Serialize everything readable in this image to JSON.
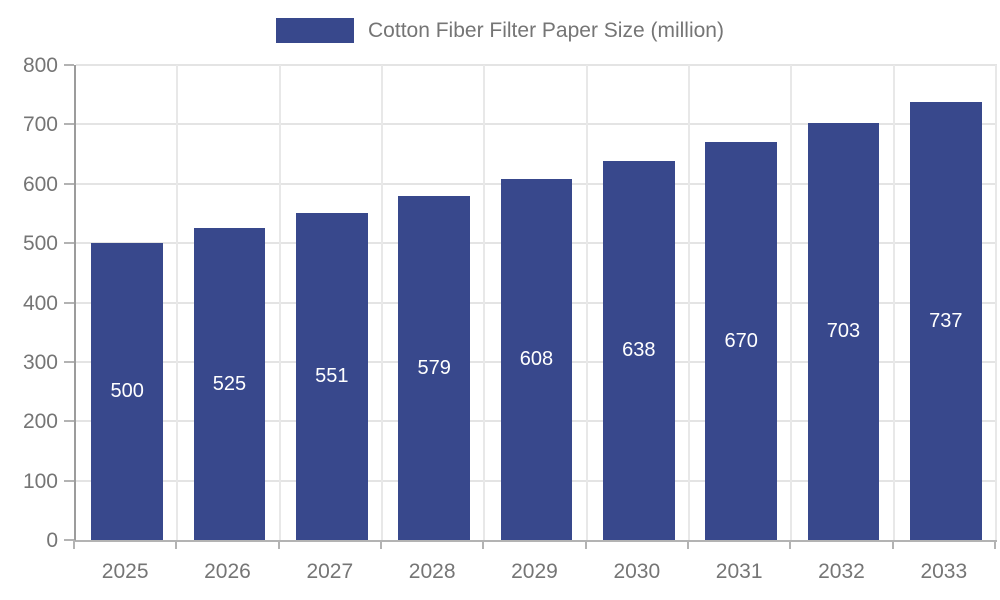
{
  "chart_data": {
    "type": "bar",
    "title": "Cotton Fiber Filter Paper Size (million)",
    "legend_position": "top-center",
    "categories": [
      "2025",
      "2026",
      "2027",
      "2028",
      "2029",
      "2030",
      "2031",
      "2032",
      "2033"
    ],
    "values": [
      500,
      525,
      551,
      579,
      608,
      638,
      670,
      703,
      737
    ],
    "xlabel": "",
    "ylabel": "",
    "ylim": [
      0,
      800
    ],
    "ytick_step": 100,
    "grid": true,
    "colors": {
      "bar": "#38488c",
      "bar_value_label": "#ffffff",
      "axis_text": "#757575",
      "gridline": "#e4e4e4",
      "axis_line": "#9c9c9c"
    }
  }
}
